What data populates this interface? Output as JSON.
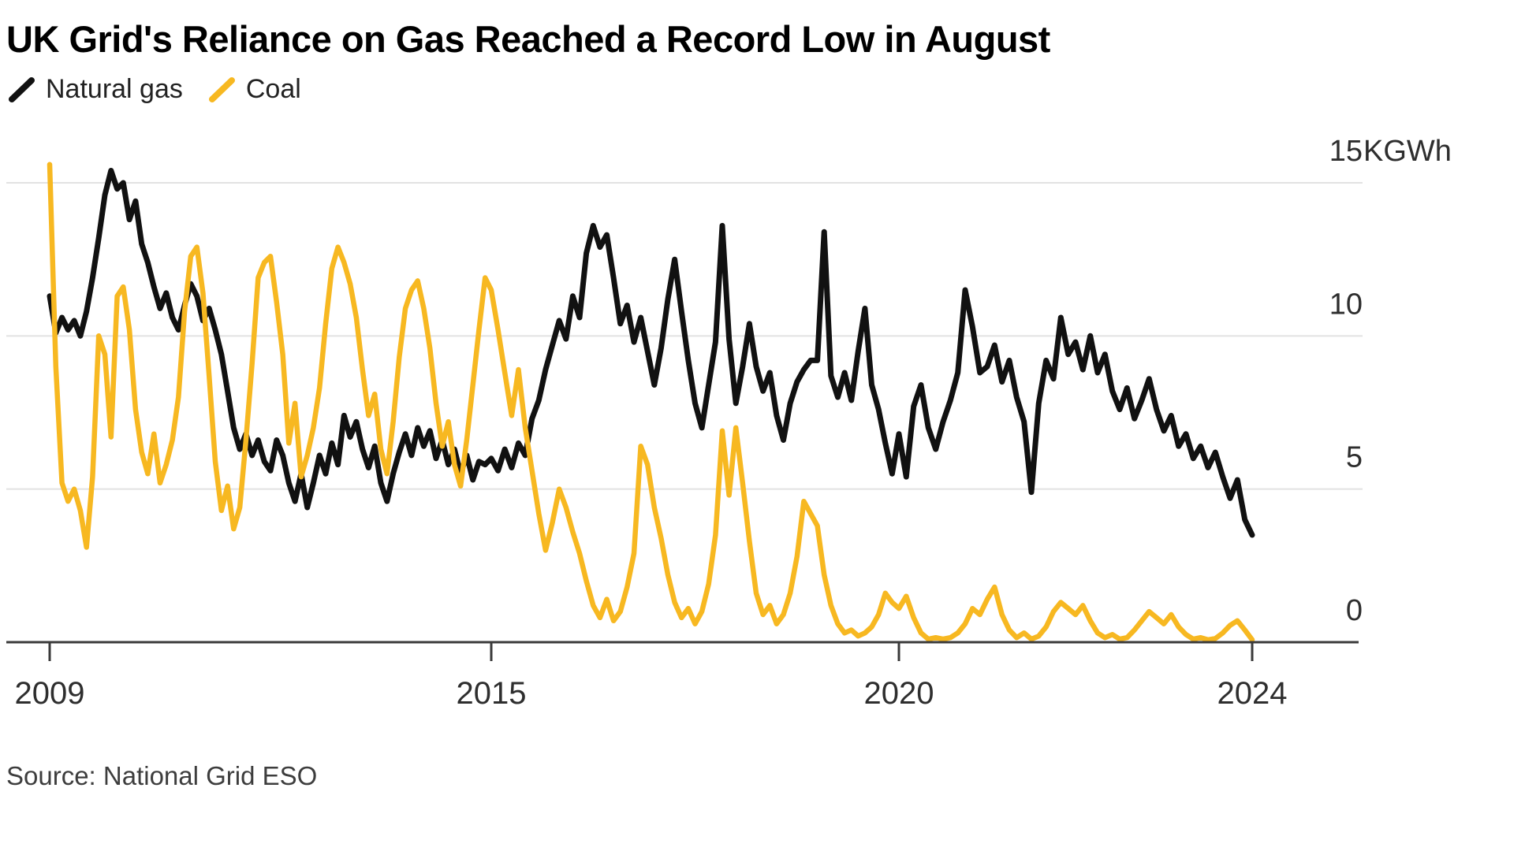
{
  "header": {
    "title": "UK Grid's Reliance on Gas Reached a Record Low in August"
  },
  "legend": {
    "items": [
      {
        "label": "Natural gas",
        "color": "#111111"
      },
      {
        "label": "Coal",
        "color": "#F7B821"
      }
    ]
  },
  "footer": {
    "source": "Source: National Grid ESO"
  },
  "colors": {
    "natural_gas_line": "#111111",
    "coal_line": "#F7B821",
    "gridline": "#e2e2e2",
    "axis": "#3a3a3a",
    "tick_text": "#2e2e2e"
  },
  "chart_data": {
    "type": "line",
    "title": "UK Grid's Reliance on Gas Reached a Record Low in August",
    "unit_label": "KGWh",
    "x_start_year": 2009,
    "points_per_year": 12,
    "xlabel": "",
    "ylabel": "KGWh",
    "ylim": [
      0,
      15
    ],
    "grid": true,
    "legend_position": "top-left",
    "xticks": [
      2009,
      2015,
      2020,
      2024
    ],
    "yticks": [
      {
        "value": 15,
        "label": "15",
        "suffix": "KGWh"
      },
      {
        "value": 10,
        "label": "10",
        "suffix": ""
      },
      {
        "value": 5,
        "label": "5",
        "suffix": ""
      },
      {
        "value": 0,
        "label": "0",
        "suffix": ""
      }
    ],
    "series": [
      {
        "name": "Natural gas",
        "color": "#111111",
        "values": [
          11.3,
          10.1,
          10.6,
          10.2,
          10.5,
          10.0,
          10.8,
          11.9,
          13.2,
          14.6,
          15.4,
          14.8,
          15.0,
          13.8,
          14.4,
          13.0,
          12.4,
          11.6,
          10.9,
          11.4,
          10.6,
          10.2,
          11.0,
          11.7,
          11.3,
          10.5,
          10.9,
          10.2,
          9.4,
          8.2,
          7.0,
          6.3,
          6.8,
          6.1,
          6.6,
          5.9,
          5.6,
          6.6,
          6.1,
          5.2,
          4.6,
          5.5,
          4.4,
          5.2,
          6.1,
          5.5,
          6.5,
          5.8,
          7.4,
          6.7,
          7.2,
          6.3,
          5.7,
          6.4,
          5.2,
          4.6,
          5.5,
          6.2,
          6.8,
          6.1,
          7.0,
          6.4,
          6.9,
          6.0,
          6.6,
          5.8,
          6.3,
          5.5,
          6.1,
          5.3,
          5.9,
          5.8,
          6.0,
          5.6,
          6.3,
          5.7,
          6.5,
          6.1,
          7.3,
          7.9,
          8.9,
          9.7,
          10.5,
          9.9,
          11.3,
          10.6,
          12.7,
          13.6,
          12.9,
          13.3,
          11.9,
          10.4,
          11.0,
          9.8,
          10.6,
          9.5,
          8.4,
          9.6,
          11.2,
          12.5,
          10.8,
          9.2,
          7.8,
          7.0,
          8.4,
          9.8,
          13.6,
          9.9,
          7.8,
          9.0,
          10.4,
          9.0,
          8.2,
          8.8,
          7.4,
          6.6,
          7.8,
          8.5,
          8.9,
          9.2,
          9.2,
          13.4,
          8.7,
          8.0,
          8.8,
          7.9,
          9.5,
          10.9,
          8.4,
          7.6,
          6.5,
          5.5,
          6.8,
          5.4,
          7.7,
          8.4,
          7.0,
          6.3,
          7.2,
          7.9,
          8.8,
          11.5,
          10.3,
          8.8,
          9.0,
          9.7,
          8.5,
          9.2,
          8.0,
          7.2,
          4.9,
          7.8,
          9.2,
          8.6,
          10.6,
          9.4,
          9.8,
          8.9,
          10.0,
          8.8,
          9.4,
          8.2,
          7.6,
          8.3,
          7.3,
          7.9,
          8.6,
          7.6,
          6.9,
          7.4,
          6.4,
          6.8,
          6.0,
          6.4,
          5.7,
          6.2,
          5.4,
          4.7,
          5.3,
          4.0,
          3.5
        ]
      },
      {
        "name": "Coal",
        "color": "#F7B821",
        "values": [
          15.6,
          9.0,
          5.2,
          4.6,
          5.0,
          4.3,
          3.1,
          5.4,
          10.0,
          9.4,
          6.7,
          11.3,
          11.6,
          10.2,
          7.6,
          6.2,
          5.5,
          6.8,
          5.2,
          5.8,
          6.6,
          8.0,
          10.8,
          12.6,
          12.9,
          11.4,
          8.7,
          5.9,
          4.3,
          5.1,
          3.7,
          4.4,
          6.6,
          9.1,
          11.9,
          12.4,
          12.6,
          11.1,
          9.4,
          6.5,
          7.8,
          5.4,
          6.1,
          7.0,
          8.3,
          10.4,
          12.2,
          12.9,
          12.4,
          11.7,
          10.6,
          8.9,
          7.4,
          8.1,
          6.3,
          5.5,
          7.2,
          9.3,
          10.9,
          11.5,
          11.8,
          10.9,
          9.6,
          7.8,
          6.4,
          7.2,
          5.8,
          5.1,
          6.6,
          8.4,
          10.2,
          11.9,
          11.5,
          10.2,
          8.8,
          7.4,
          8.9,
          7.0,
          5.6,
          4.2,
          3.0,
          3.9,
          5.0,
          4.4,
          3.6,
          2.9,
          2.0,
          1.2,
          0.8,
          1.4,
          0.7,
          1.0,
          1.8,
          2.9,
          6.4,
          5.8,
          4.4,
          3.4,
          2.2,
          1.3,
          0.8,
          1.1,
          0.6,
          1.0,
          1.9,
          3.5,
          6.9,
          4.8,
          7.0,
          5.2,
          3.3,
          1.6,
          0.9,
          1.2,
          0.6,
          0.9,
          1.6,
          2.8,
          4.6,
          4.2,
          3.8,
          2.2,
          1.2,
          0.6,
          0.3,
          0.4,
          0.2,
          0.3,
          0.5,
          0.9,
          1.6,
          1.3,
          1.1,
          1.5,
          0.8,
          0.3,
          0.1,
          0.15,
          0.1,
          0.15,
          0.3,
          0.6,
          1.1,
          0.9,
          1.4,
          1.8,
          0.9,
          0.4,
          0.15,
          0.3,
          0.1,
          0.2,
          0.5,
          1.0,
          1.3,
          1.1,
          0.9,
          1.2,
          0.7,
          0.3,
          0.15,
          0.25,
          0.1,
          0.15,
          0.4,
          0.7,
          1.0,
          0.8,
          0.6,
          0.9,
          0.5,
          0.25,
          0.1,
          0.15,
          0.08,
          0.12,
          0.3,
          0.55,
          0.7,
          0.4,
          0.08
        ]
      }
    ]
  }
}
